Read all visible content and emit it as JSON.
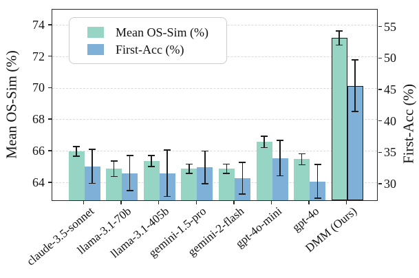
{
  "legend": {
    "items": [
      {
        "label": "Mean OS-Sim (%)",
        "color": "#96d5c3"
      },
      {
        "label": "First-Acc (%)",
        "color": "#7fb1d8"
      }
    ]
  },
  "chart_data": {
    "type": "bar",
    "categories": [
      "claude-3.5-sonnet",
      "llama-3.1-70b",
      "llama-3.1-405b",
      "gemini-1.5-pro",
      "gemini-2-flash",
      "gpt-4o-mini",
      "gpt-4o",
      "DMM (Ours)"
    ],
    "series": [
      {
        "name": "Mean OS-Sim (%)",
        "axis": "left",
        "color": "#96d5c3",
        "values": [
          66.0,
          64.9,
          65.4,
          64.9,
          64.9,
          66.6,
          65.5,
          73.2
        ],
        "errors": [
          0.3,
          0.5,
          0.35,
          0.3,
          0.3,
          0.35,
          0.35,
          0.45
        ]
      },
      {
        "name": "First-Acc (%)",
        "axis": "right",
        "color": "#7fb1d8",
        "values": [
          32.9,
          31.8,
          31.8,
          32.7,
          31.0,
          34.2,
          30.5,
          45.7
        ],
        "errors": [
          2.7,
          2.8,
          3.7,
          2.6,
          2.5,
          2.8,
          2.7,
          4.1
        ]
      }
    ],
    "left_axis": {
      "label": "Mean OS-Sim (%)",
      "ticks": [
        64,
        66,
        68,
        70,
        72,
        74
      ],
      "range": [
        62.9,
        75.0
      ]
    },
    "right_axis": {
      "label": "First-Acc (%)",
      "ticks": [
        30,
        35,
        40,
        45,
        50,
        55
      ],
      "range": [
        27.5,
        57.8
      ]
    },
    "grid": true,
    "legend_position": "upper-left",
    "highlighted_category": "DMM (Ours)"
  }
}
